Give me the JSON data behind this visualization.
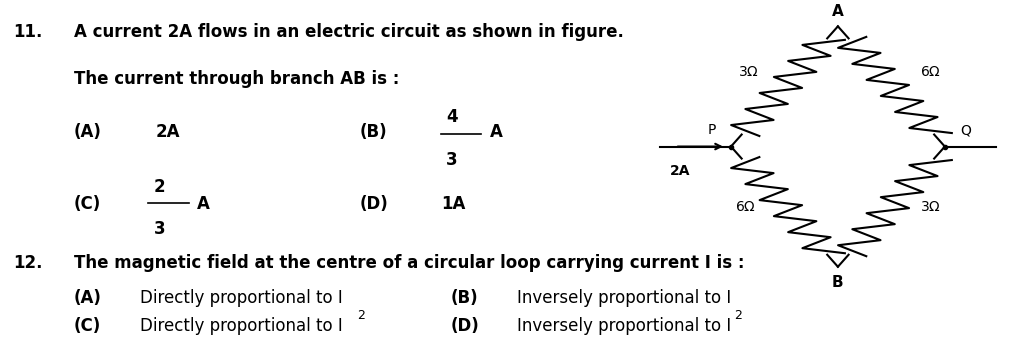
{
  "background_color": "#ffffff",
  "q11_number": "11.",
  "q11_line1": "A current 2A flows in an electric circuit as shown in figure.",
  "q11_line2": "The current through branch AB is :",
  "q11_A_label": "(A)",
  "q11_A_text": "2A",
  "q11_B_label": "(B)",
  "q11_B_frac_num": "4",
  "q11_B_frac_den": "3",
  "q11_B_text": "A",
  "q11_C_label": "(C)",
  "q11_C_frac_num": "2",
  "q11_C_frac_den": "3",
  "q11_C_text": "A",
  "q11_D_label": "(D)",
  "q11_D_text": "1A",
  "q12_number": "12.",
  "q12_line1": "The magnetic field at the centre of a circular loop carrying current I is :",
  "q12_A_label": "(A)",
  "q12_A_text": "Directly proportional to I",
  "q12_B_label": "(B)",
  "q12_B_text": "Inversely proportional to I",
  "q12_C_label": "(C)",
  "q12_C_text": "Directly proportional to I",
  "q12_C_sup": "2",
  "q12_D_label": "(D)",
  "q12_D_text": "Inversely proportional to I",
  "q12_D_sup": "2",
  "font_size_main": 12,
  "font_size_small": 9,
  "text_color": "#000000",
  "resistor_color": "#000000"
}
